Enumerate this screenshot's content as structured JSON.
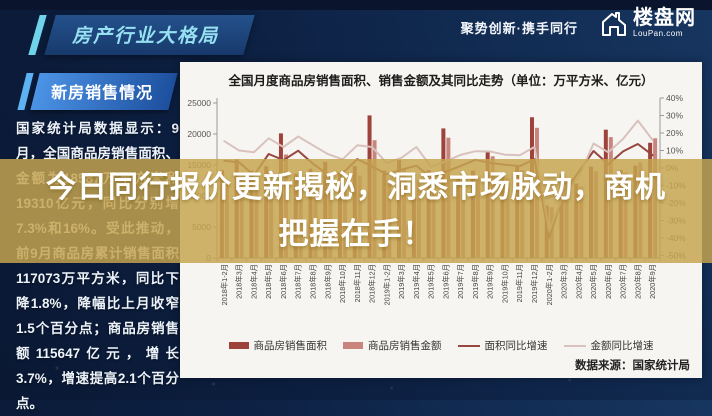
{
  "header": {
    "badge": "房产行业大格局",
    "slogan": "聚势创新·携手同行",
    "logo_name": "楼盘网",
    "logo_domain": "LouPan.com"
  },
  "sidebar": {
    "section_title": "新房销售情况",
    "paragraph": "国家统计局数据显示：9月，全国商品房销售面积、金额为18587万平方米和19310亿元，同比分别增7.3%和16%。受此推动，前9月商品房累计销售面积117073万平方米，同比下降1.8%，降幅比上月收窄1.5个百分点；商品房销售额115647亿元，增长3.7%，增速提高2.1个百分点。"
  },
  "overlay": {
    "line1": "今日同行报价更新揭秘，洞悉市场脉动，商机",
    "line2": "把握在手！",
    "background": "#c6a450"
  },
  "chart": {
    "title": "全国月度商品房销售面积、销售金额及其同比走势（单位：万平方米、亿元）",
    "source": "数据来源：国家统计局",
    "legend": [
      {
        "label": "商品房销售面积",
        "type": "bar",
        "color": "#9e423c"
      },
      {
        "label": "商品房销售金额",
        "type": "bar",
        "color": "#c9847e"
      },
      {
        "label": "面积同比增速",
        "type": "line",
        "color": "#96473f"
      },
      {
        "label": "金额同比增速",
        "type": "line",
        "color": "#d9c2bd"
      }
    ]
  },
  "chart_data": {
    "type": "bar",
    "subtype": "dual-axis bar + line combo",
    "title": "全国月度商品房销售面积、销售金额及其同比走势（单位：万平方米、亿元）",
    "categories": [
      "2018年1-2月",
      "2018年3月",
      "2018年4月",
      "2018年5月",
      "2018年6月",
      "2018年7月",
      "2018年8月",
      "2018年9月",
      "2018年10月",
      "2018年11月",
      "2018年12月",
      "2019年1-2月",
      "2019年3月",
      "2019年4月",
      "2019年5月",
      "2019年6月",
      "2019年7月",
      "2019年8月",
      "2019年9月",
      "2019年10月",
      "2019年11月",
      "2019年12月",
      "2020年1-2月",
      "2020年3月",
      "2020年4月",
      "2020年5月",
      "2020年6月",
      "2020年7月",
      "2020年8月",
      "2020年9月"
    ],
    "series": [
      {
        "name": "商品房销售面积",
        "type": "bar",
        "axis": "left",
        "color": "#9e423c",
        "values": [
          14142,
          15900,
          14100,
          14800,
          20100,
          13600,
          14400,
          15500,
          13600,
          14800,
          23000,
          14102,
          15800,
          13400,
          14200,
          20900,
          13200,
          14100,
          17300,
          13300,
          14700,
          22700,
          8475,
          13500,
          12000,
          14730,
          20700,
          14200,
          14900,
          18587
        ]
      },
      {
        "name": "商品房销售金额",
        "type": "bar",
        "axis": "left",
        "color": "#c9847e",
        "values": [
          12454,
          13100,
          11500,
          12400,
          16700,
          11800,
          12600,
          13000,
          12000,
          13300,
          19000,
          12803,
          14500,
          12500,
          12800,
          19400,
          12500,
          13100,
          16400,
          12900,
          14200,
          21000,
          8203,
          12200,
          11500,
          14000,
          19500,
          13800,
          15400,
          19310
        ]
      },
      {
        "name": "面积同比增速",
        "type": "line",
        "axis": "right",
        "color": "#96473f",
        "values": [
          4.1,
          3.2,
          -4.1,
          8.0,
          4.5,
          9.9,
          2.4,
          -3.6,
          -3.1,
          5.1,
          0.9,
          -3.6,
          -0.9,
          1.3,
          -5.5,
          -2.2,
          1.2,
          4.7,
          2.9,
          1.9,
          1.1,
          5.0,
          -39.9,
          -14.1,
          -2.1,
          9.7,
          2.1,
          9.5,
          13.7,
          7.3
        ]
      },
      {
        "name": "金额同比增速",
        "type": "line",
        "axis": "right",
        "color": "#d9c2bd",
        "values": [
          15.3,
          10.0,
          9.0,
          17.0,
          12.0,
          18.0,
          13.0,
          8.0,
          5.0,
          13.0,
          12.0,
          2.8,
          5.9,
          12.0,
          0.7,
          3.9,
          7.5,
          9.6,
          9.4,
          7.6,
          7.3,
          12.0,
          -35.9,
          -14.6,
          -5.0,
          14.0,
          9.0,
          16.6,
          27.1,
          16.0
        ]
      }
    ],
    "left_axis": {
      "min": 0,
      "max": 25000,
      "step": 5000,
      "ticks": [
        "0",
        "5000",
        "10000",
        "15000",
        "20000",
        "25000"
      ]
    },
    "right_axis": {
      "min": -50,
      "max": 40,
      "step": 10,
      "ticks": [
        "40%",
        "30%",
        "20%",
        "10%",
        "0%",
        "-10%",
        "-20%",
        "-30%",
        "-40%",
        "-50%"
      ]
    },
    "grid": false,
    "legend_position": "bottom",
    "source": "数据来源：国家统计局"
  }
}
